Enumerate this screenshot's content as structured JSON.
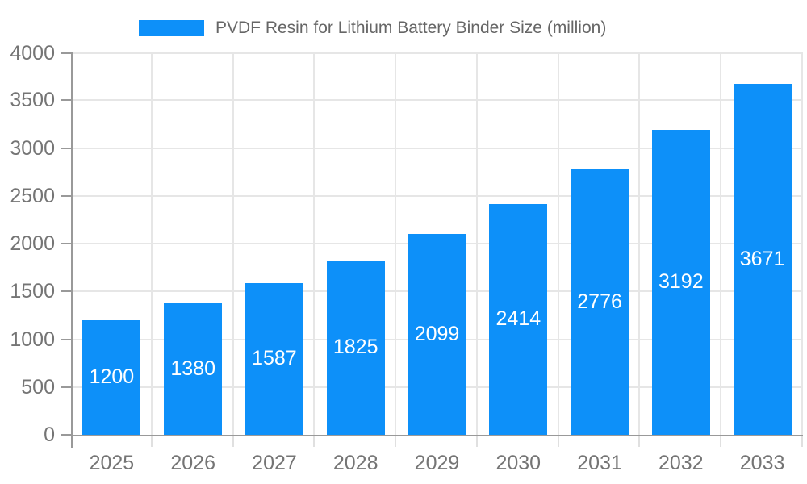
{
  "legend": {
    "label": "PVDF Resin for Lithium Battery Binder Size (million)"
  },
  "chart_data": {
    "type": "bar",
    "title": "PVDF Resin for Lithium Battery Binder Size (million)",
    "series_name": "PVDF Resin for Lithium Battery Binder Size (million)",
    "categories": [
      "2025",
      "2026",
      "2027",
      "2028",
      "2029",
      "2030",
      "2031",
      "2032",
      "2033"
    ],
    "values": [
      1200,
      1380,
      1587,
      1825,
      2099,
      2414,
      2776,
      3192,
      3671
    ],
    "value_labels": [
      "1200",
      "1380",
      "1587",
      "1825",
      "2099",
      "2414",
      "2776",
      "3192",
      "3671"
    ],
    "xlabel": "",
    "ylabel": "",
    "ylim": [
      0,
      4000
    ],
    "ytick_step": 500,
    "yticks": [
      0,
      500,
      1000,
      1500,
      2000,
      2500,
      3000,
      3500,
      4000
    ],
    "grid": true,
    "legend_position": "top",
    "colors": {
      "bar": "#0d90f9",
      "value_label": "#ffffff",
      "axis_text": "#757575",
      "legend_text": "#666666",
      "grid_line": "#e6e6e6",
      "axis_line": "#999999",
      "category_tick": "#e0e0e0",
      "background": "#ffffff"
    }
  }
}
